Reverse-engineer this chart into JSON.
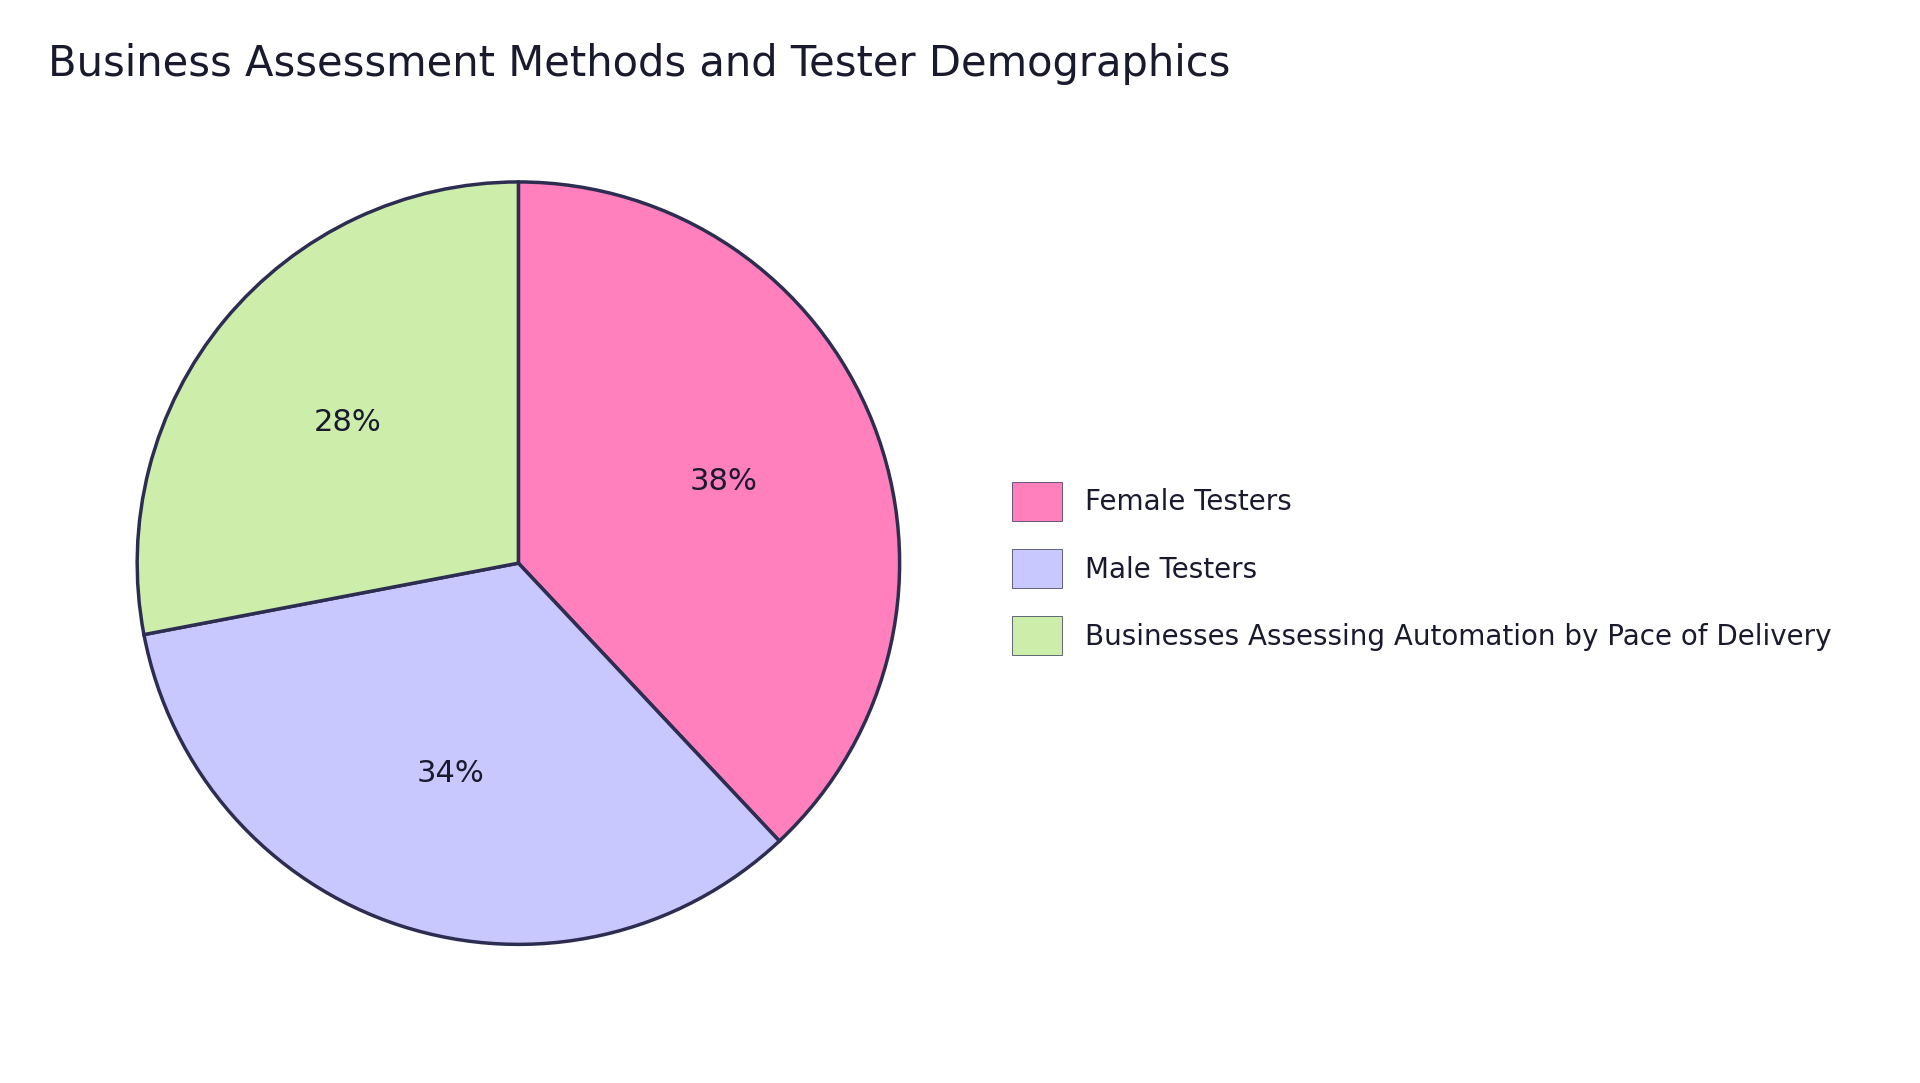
{
  "title": "Business Assessment Methods and Tester Demographics",
  "slices": [
    {
      "label": "Female Testers",
      "value": 38,
      "color": "#FF80BC",
      "pct_label": "38%"
    },
    {
      "label": "Male Testers",
      "value": 34,
      "color": "#C8C8FF",
      "pct_label": "34%"
    },
    {
      "label": "Businesses Assessing Automation by Pace of Delivery",
      "value": 28,
      "color": "#CCEEAA",
      "pct_label": "28%"
    }
  ],
  "title_fontsize": 30,
  "label_fontsize": 22,
  "legend_fontsize": 20,
  "edge_color": "#2d2d52",
  "edge_linewidth": 2.5,
  "background_color": "#ffffff",
  "text_color": "#1a1a2e",
  "startangle": 90
}
